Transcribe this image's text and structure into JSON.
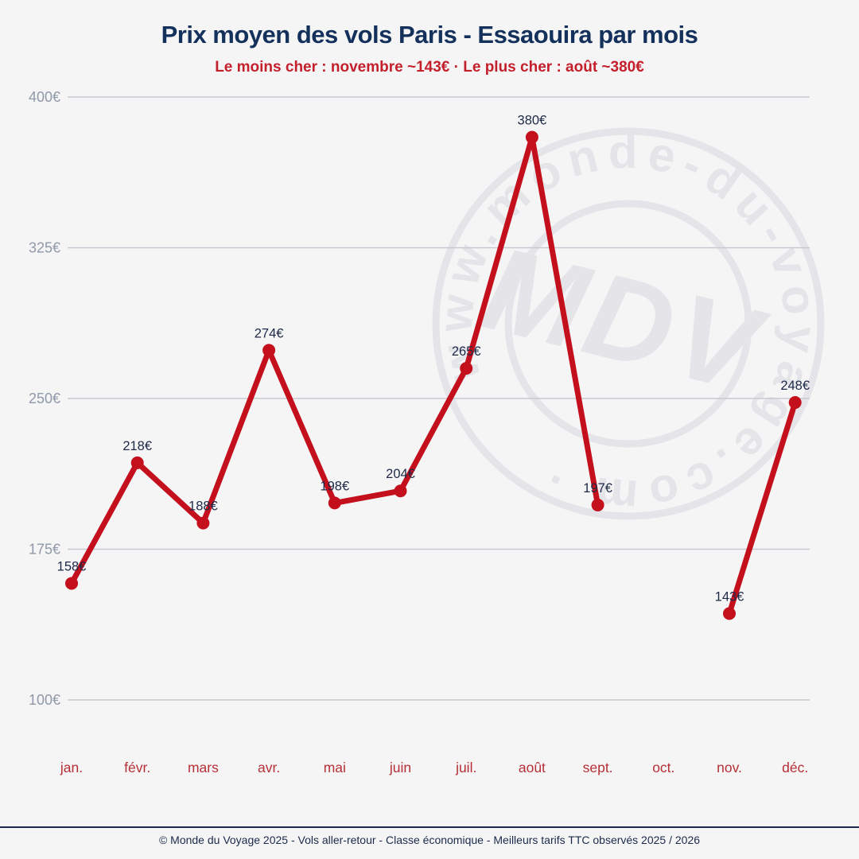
{
  "header": {
    "title": "Prix moyen des vols Paris - Essaouira par mois",
    "subtitle": "Le moins cher : novembre ~143€ · Le plus cher : août ~380€"
  },
  "watermark": {
    "ring_text": "www.monde-du-voyage.com ·",
    "initials": "MDV"
  },
  "footer": {
    "text": "© Monde du Voyage 2025 - Vols aller-retour - Classe économique - Meilleurs tarifs TTC observés 2025 / 2026"
  },
  "colors": {
    "background": "#f5f5f6",
    "title_navy": "#14315c",
    "subtitle_red": "#c3202c",
    "line_red": "#c3101c",
    "point_label_navy": "#1e2947",
    "ytick_gray": "#8f99a8",
    "month_red": "#b62f36",
    "grid_gray": "#c6c9d0",
    "footer_navy": "#1b2a4a",
    "watermark_gray": "#e4e4e9"
  },
  "chart_data": {
    "type": "line",
    "title": "Prix moyen des vols Paris - Essaouira par mois",
    "subtitle": "Le moins cher : novembre ~143€ · Le plus cher : août ~380€",
    "categories": [
      "jan.",
      "févr.",
      "mars",
      "avr.",
      "mai",
      "juin",
      "juil.",
      "août",
      "sept.",
      "oct.",
      "nov.",
      "déc."
    ],
    "values": [
      158,
      218,
      188,
      274,
      198,
      204,
      265,
      380,
      197,
      null,
      143,
      248
    ],
    "point_labels": [
      "158€",
      "218€",
      "188€",
      "274€",
      "198€",
      "204€",
      "265€",
      "380€",
      "197€",
      null,
      "143€",
      "248€"
    ],
    "unit": "€",
    "ylim": [
      100,
      400
    ],
    "yticks": [
      100,
      175,
      250,
      325,
      400
    ],
    "ytick_labels": [
      "100€",
      "175€",
      "250€",
      "325€",
      "400€"
    ],
    "grid": "horizontal",
    "legend": "none",
    "missing_months": [
      "oct."
    ],
    "cheapest": {
      "month": "novembre",
      "value": 143
    },
    "most_expensive": {
      "month": "août",
      "value": 380
    }
  }
}
